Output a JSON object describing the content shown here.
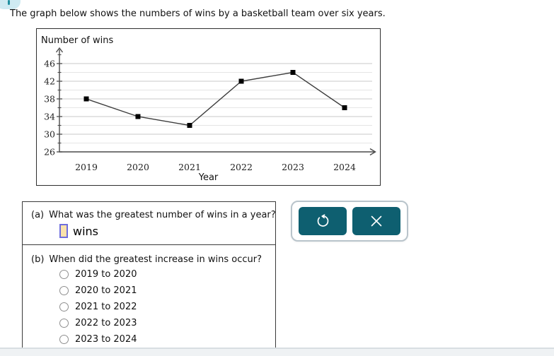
{
  "prompt": "The graph below shows the numbers of wins by a basketball team over six years.",
  "chart_data": {
    "type": "line",
    "title": "Number of wins",
    "xlabel": "Year",
    "categories": [
      "2019",
      "2020",
      "2021",
      "2022",
      "2023",
      "2024"
    ],
    "values": [
      38,
      34,
      32,
      42,
      44,
      36
    ],
    "ylim": [
      26,
      48
    ],
    "yticks_major": [
      26,
      30,
      34,
      38,
      42,
      46
    ],
    "yticks_minor": [
      28,
      32,
      36,
      40,
      44,
      48
    ],
    "grid": "horizontal-only",
    "legend": "none",
    "marker": "black-square",
    "colors": {
      "line": "#3c3c3c",
      "marker": "#000000",
      "grid_major": "#c9c9c9",
      "grid_minor": "#e5e5e5",
      "axis": "#4a4a4a",
      "tick_label": "#222222"
    }
  },
  "question_a": {
    "label": "(a)",
    "text": "What was the greatest number of wins in a year?",
    "input_value": "",
    "unit_label": "wins"
  },
  "question_b": {
    "label": "(b)",
    "text": "When did the greatest increase in wins occur?",
    "options": [
      "2019 to 2020",
      "2020 to 2021",
      "2021 to 2022",
      "2022 to 2023",
      "2023 to 2024"
    ],
    "selected": null
  },
  "toolbar": {
    "undo_icon": "undo-circular-arrow",
    "close_icon": "x-mark",
    "button_color": "#0e5f70"
  },
  "colors": {
    "accent_teal": "#0e5f70",
    "bubble_icon_fill": "#cfeaf2",
    "input_fill": "#fae2ac",
    "input_border": "#6e6edd",
    "footer": "#eff2f4"
  }
}
